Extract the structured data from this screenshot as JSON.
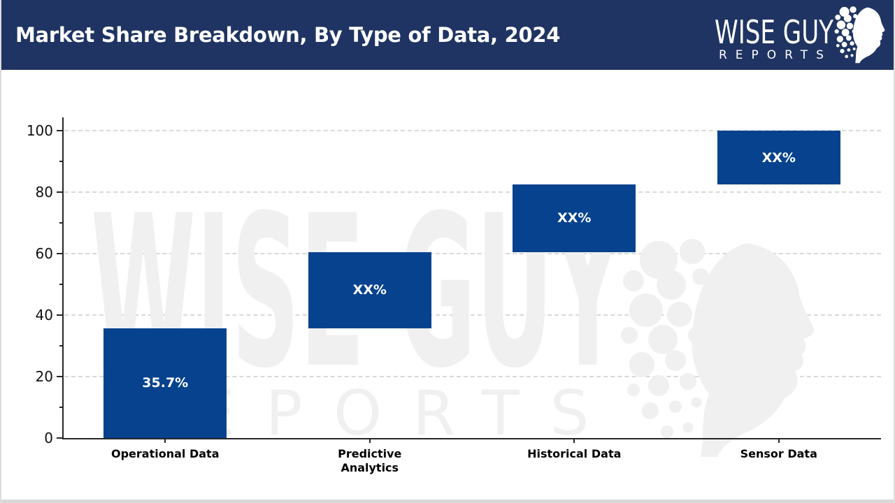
{
  "header": {
    "title": "Market Share Breakdown, By Type of Data, 2024",
    "logo": {
      "brand": "WISE GUY",
      "sub": "REPORTS"
    }
  },
  "watermark": {
    "brand": "WISE GUY",
    "sub": "REPORTS"
  },
  "chart_data": {
    "type": "bar",
    "variant": "waterfall",
    "title": "Market Share Breakdown, By Type of Data, 2024",
    "categories": [
      "Operational Data",
      "Predictive\nAnalytics",
      "Historical Data",
      "Sensor Data"
    ],
    "segments": [
      {
        "category": "Operational Data",
        "start": 0,
        "end": 35.7,
        "label": "35.7%"
      },
      {
        "category": "Predictive Analytics",
        "start": 35.7,
        "end": 60.5,
        "label": "XX%"
      },
      {
        "category": "Historical Data",
        "start": 60.5,
        "end": 82.5,
        "label": "XX%"
      },
      {
        "category": "Sensor Data",
        "start": 82.5,
        "end": 100,
        "label": "XX%"
      }
    ],
    "ylim": [
      0,
      100
    ],
    "yticks": [
      0,
      20,
      40,
      60,
      80,
      100
    ],
    "minor_yticks": [
      10,
      30,
      50,
      70,
      90
    ],
    "grid": "horizontal-dashed",
    "legend": "none",
    "colors": {
      "bar": "#07428f",
      "bar_label": "#ffffff",
      "header_bg": "#1f3462",
      "grid": "#d8d8d8",
      "axis": "#262626",
      "watermark": "#f0f0f1"
    }
  }
}
